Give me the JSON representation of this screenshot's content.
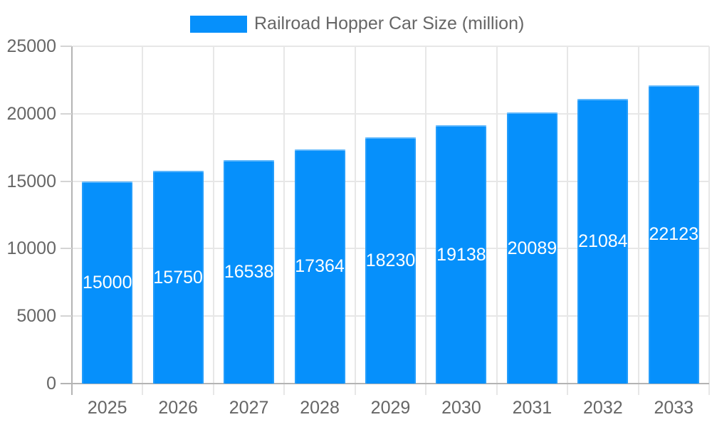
{
  "legend": {
    "label": "Railroad Hopper Car Size (million)"
  },
  "chart_data": {
    "type": "bar",
    "title": "Railroad Hopper Car Size (million)",
    "categories": [
      "2025",
      "2026",
      "2027",
      "2028",
      "2029",
      "2030",
      "2031",
      "2032",
      "2033"
    ],
    "values": [
      15000,
      15750,
      16538,
      17364,
      18230,
      19138,
      20089,
      21084,
      22123
    ],
    "xlabel": "",
    "ylabel": "",
    "ylim": [
      0,
      25000
    ],
    "yticks": [
      0,
      5000,
      10000,
      15000,
      20000,
      25000
    ],
    "grid": "both",
    "legend_position": "top",
    "bar_color": "#0690fb",
    "value_label_color": "#ffffff",
    "axis_text_color": "#666666",
    "grid_color": "#e7e7e7",
    "tick_color": "#d4d4d4",
    "axis_line_color": "#b4b4b4",
    "background_color": "#ffffff"
  }
}
